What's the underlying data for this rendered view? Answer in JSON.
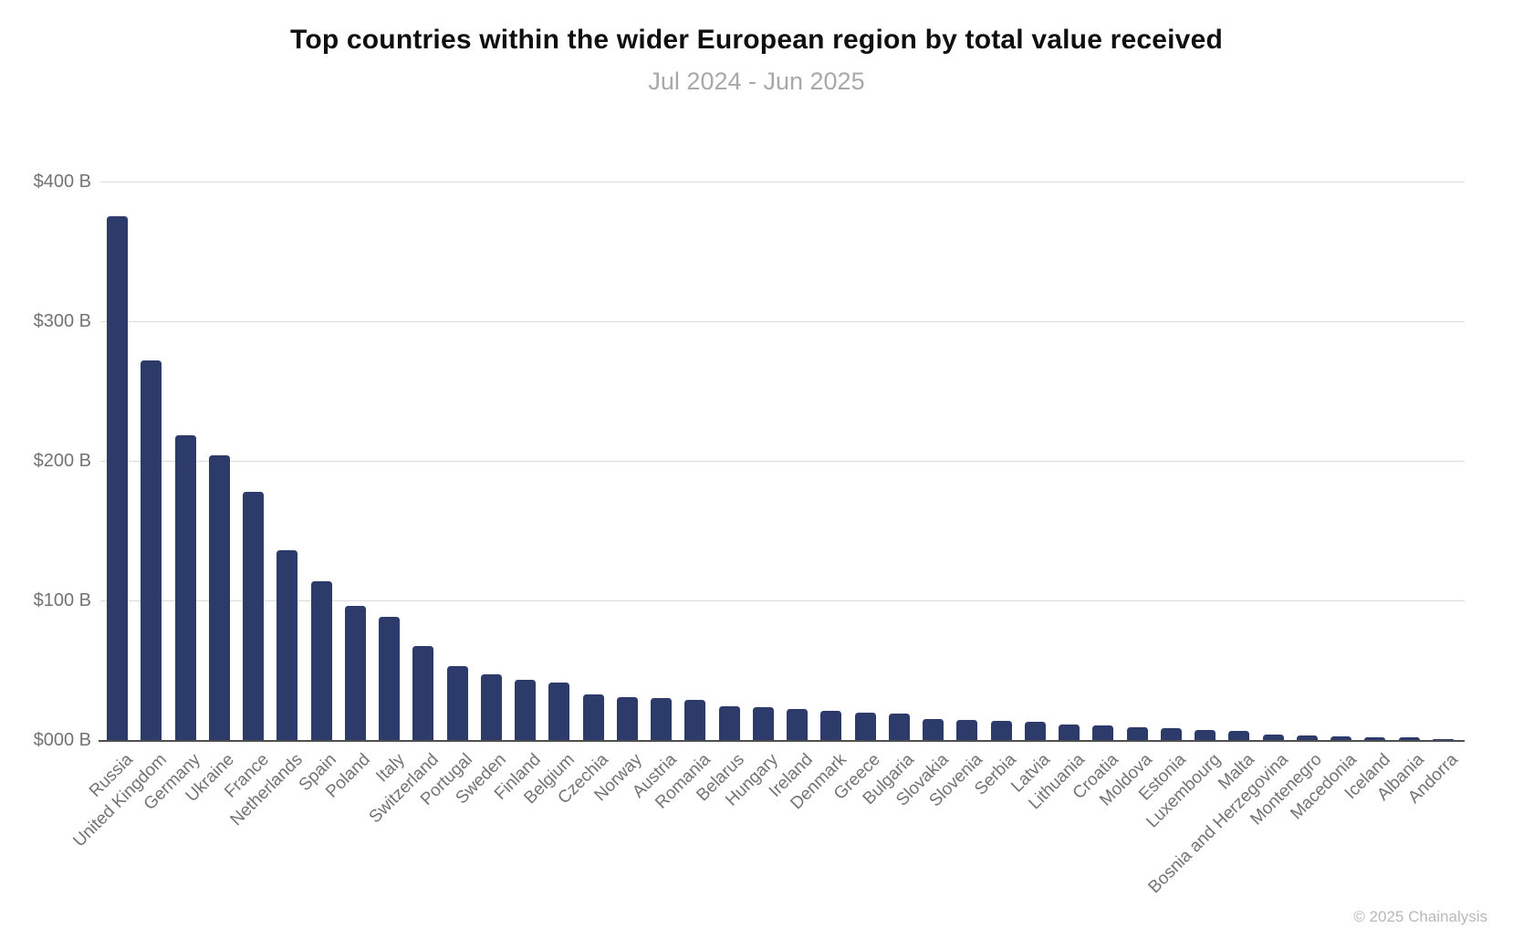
{
  "footer": {
    "copyright": "© 2025 Chainalysis"
  },
  "chart_data": {
    "type": "bar",
    "title": "Top countries within the wider European region by total value received",
    "subtitle": "Jul 2024 - Jun 2025",
    "unit": "$B",
    "ylim": [
      0,
      400
    ],
    "grid": true,
    "legend_position": "none",
    "bar_color": "#2c3b6a",
    "yticks": [
      {
        "value": 400,
        "label": "$400 B"
      },
      {
        "value": 300,
        "label": "$300 B"
      },
      {
        "value": 200,
        "label": "$200 B"
      },
      {
        "value": 100,
        "label": "$100 B"
      },
      {
        "value": 0,
        "label": "$000 B"
      }
    ],
    "categories": [
      "Russia",
      "United Kingdom",
      "Germany",
      "Ukraine",
      "France",
      "Netherlands",
      "Spain",
      "Poland",
      "Italy",
      "Switzerland",
      "Portugal",
      "Sweden",
      "Finland",
      "Belgium",
      "Czechia",
      "Norway",
      "Austria",
      "Romania",
      "Belarus",
      "Hungary",
      "Ireland",
      "Denmark",
      "Greece",
      "Bulgaria",
      "Slovakia",
      "Slovenia",
      "Serbia",
      "Latvia",
      "Lithuania",
      "Croatia",
      "Moldova",
      "Estonia",
      "Luxembourg",
      "Malta",
      "Bosnia and Herzegovina",
      "Montenegro",
      "Macedonia",
      "Iceland",
      "Albania",
      "Andorra"
    ],
    "values": [
      375,
      272,
      218,
      204,
      178,
      136,
      114,
      96,
      88,
      67,
      53,
      47,
      43,
      41,
      32.5,
      31,
      30,
      28.5,
      24,
      23.5,
      22.5,
      21,
      19.5,
      19,
      15,
      14.5,
      14,
      13,
      11,
      10.5,
      9,
      8.5,
      7,
      6.5,
      4,
      3.5,
      2.5,
      2,
      1.8,
      0.3
    ]
  }
}
